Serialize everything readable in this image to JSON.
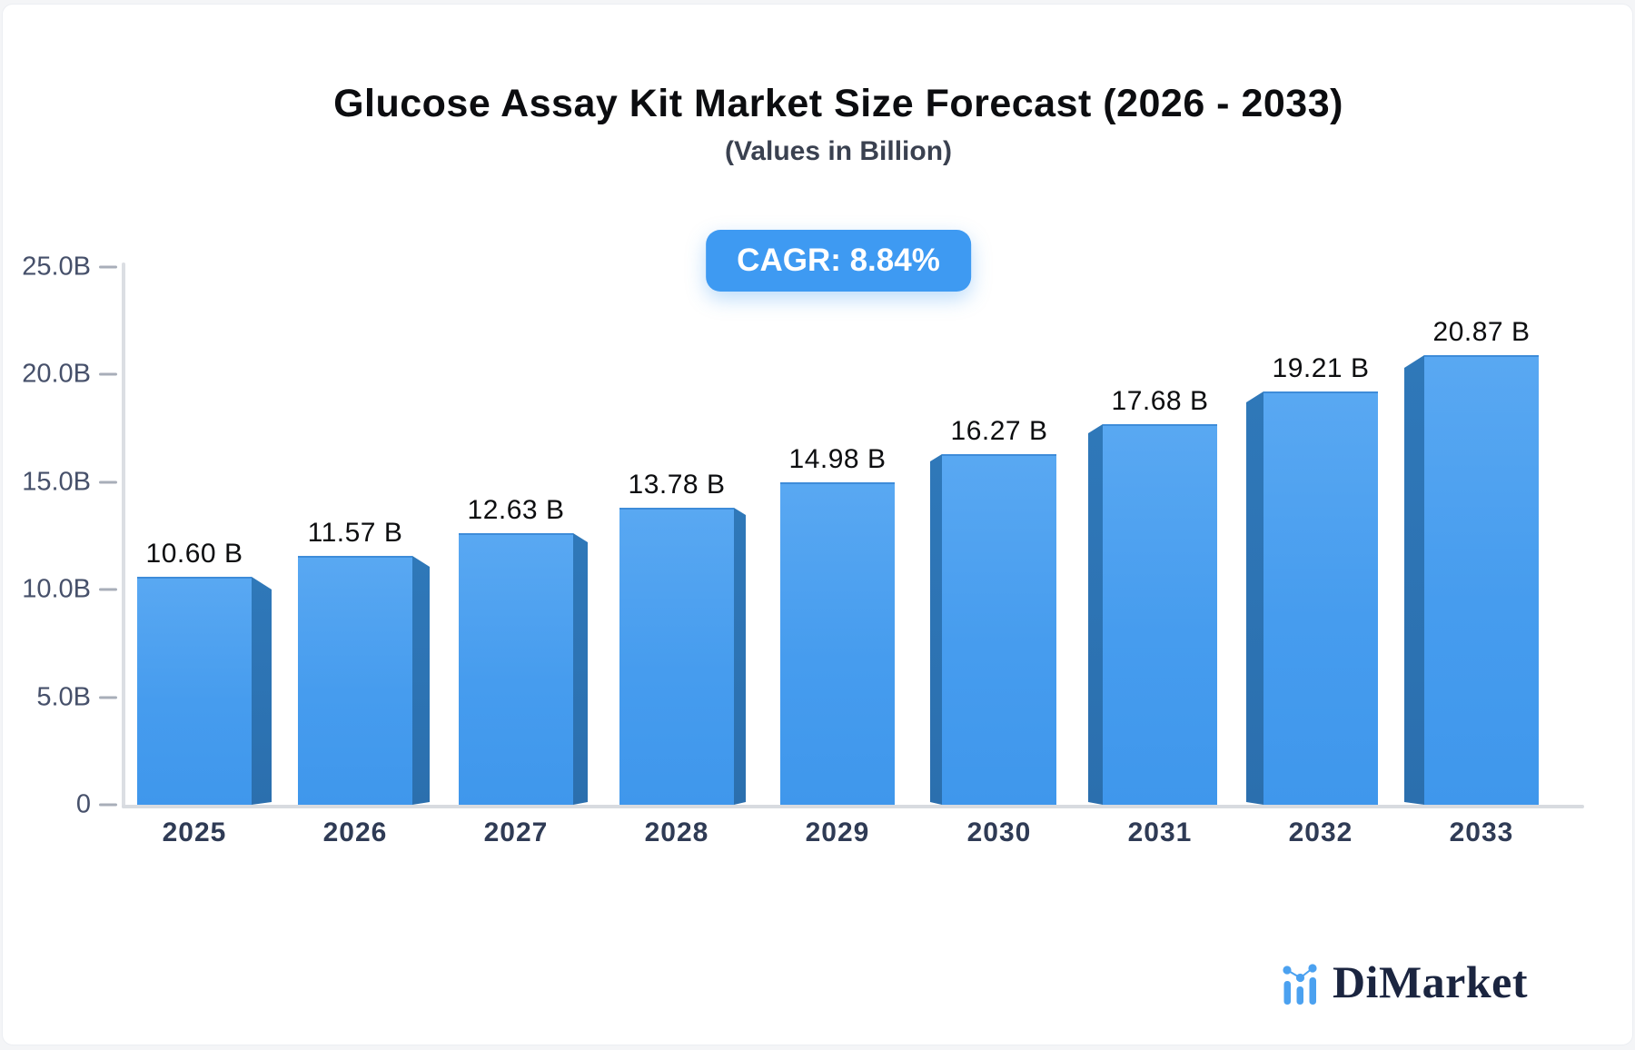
{
  "header": {
    "title": "Glucose Assay Kit Market Size Forecast (2026 - 2033)",
    "subtitle": "(Values in Billion)",
    "badge_label": "CAGR: 8.84%"
  },
  "chart_data": {
    "type": "bar",
    "title": "Glucose Assay Kit Market Size Forecast (2026 - 2033)",
    "subtitle": "(Values in Billion)",
    "annotation": "CAGR: 8.84%",
    "categories": [
      "2025",
      "2026",
      "2027",
      "2028",
      "2029",
      "2030",
      "2031",
      "2032",
      "2033"
    ],
    "values": [
      10.6,
      11.57,
      12.63,
      13.78,
      14.98,
      16.27,
      17.68,
      19.21,
      20.87
    ],
    "value_labels": [
      "10.60 B",
      "11.57 B",
      "12.63 B",
      "13.78 B",
      "14.98 B",
      "16.27 B",
      "17.68 B",
      "19.21 B",
      "20.87 B"
    ],
    "xlabel": "",
    "ylabel": "",
    "ylim": [
      0,
      25
    ],
    "yticks": [
      {
        "label": "25.0B",
        "value": 25
      },
      {
        "label": "20.0B",
        "value": 20
      },
      {
        "label": "15.0B",
        "value": 15
      },
      {
        "label": "10.0B",
        "value": 10
      },
      {
        "label": "5.0B",
        "value": 5
      },
      {
        "label": "0",
        "value": 0
      }
    ],
    "grid": false,
    "legend": null,
    "bar_style": "3d-perspective"
  },
  "colors": {
    "bar_face_top": "#59A8F2",
    "bar_face_bottom": "#3F97EC",
    "bar_side": "#2C72B4",
    "badge_bg": "#3E9AF2",
    "axis_line": "#d8dbe0",
    "title_text": "#0c0d10",
    "year_label_text": "#2f3b55",
    "brand_blue": "#4BA1F0",
    "brand_navy": "#1b2540"
  },
  "branding": {
    "logo_text": "DiMarket",
    "logo_icon": "mini-bar-chart-icon"
  }
}
